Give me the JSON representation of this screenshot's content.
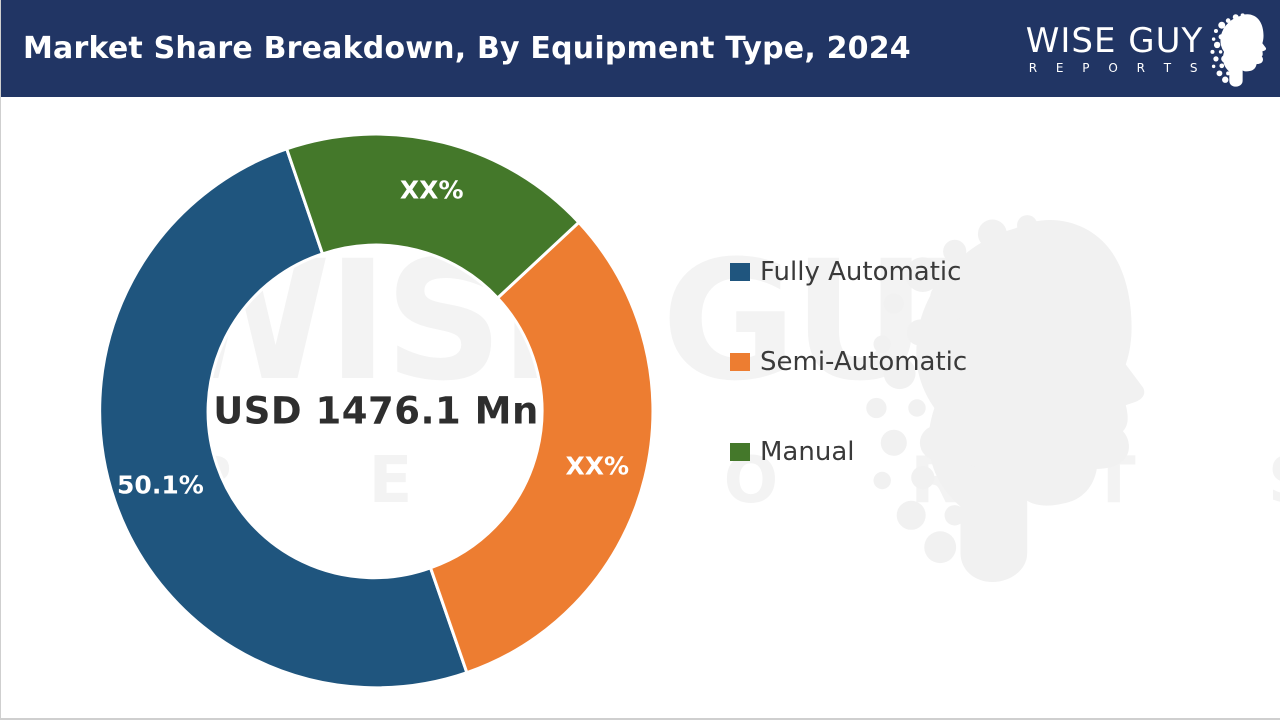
{
  "header": {
    "title": "Market Share Breakdown, By Equipment Type, 2024",
    "bg_color": "#213564",
    "logo": {
      "name": "WISE GUY",
      "sub": "R E P O R T S"
    }
  },
  "watermark": {
    "name": "WISE GUY",
    "sub": "R E P O R T S"
  },
  "chart_data": {
    "type": "pie",
    "subtype": "donut",
    "title": "Market Share Breakdown, By Equipment Type, 2024",
    "center_label": "USD 1476.1 Mn",
    "legend_position": "right",
    "start_angle_deg": 341.2,
    "direction": "counterclockwise",
    "inner_radius_ratio": 0.6,
    "series": [
      {
        "name": "Fully Automatic",
        "label": "50.1%",
        "pct": 50.1,
        "color": "#1f557e"
      },
      {
        "name": "Semi-Automatic",
        "label": "XX%",
        "pct": 31.6,
        "color": "#ed7d31"
      },
      {
        "name": "Manual",
        "label": "XX%",
        "pct": 18.3,
        "color": "#44782a"
      }
    ]
  }
}
